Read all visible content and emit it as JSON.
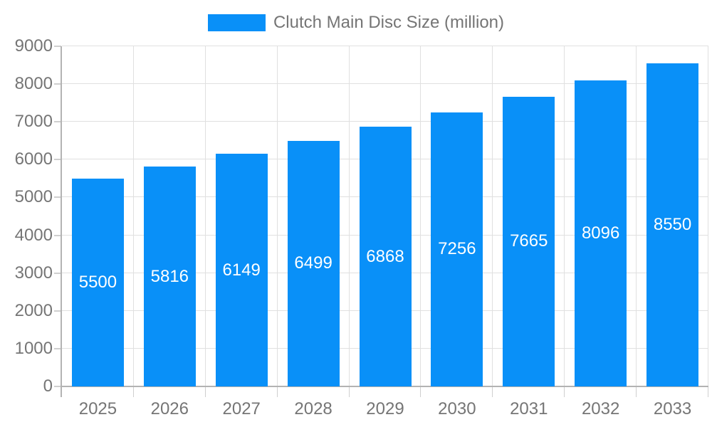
{
  "legend": {
    "label": "Clutch Main Disc Size (million)"
  },
  "colors": {
    "bar": "#0990f8",
    "grid": "#e0e0e0",
    "axis": "#b3b3b3",
    "tick": "#cfcfcf",
    "text": "#757575",
    "value_label": "#ffffff",
    "background": "#ffffff"
  },
  "chart_data": {
    "type": "bar",
    "title": "Clutch Main Disc Size (million)",
    "categories": [
      "2025",
      "2026",
      "2027",
      "2028",
      "2029",
      "2030",
      "2031",
      "2032",
      "2033"
    ],
    "values": [
      5500,
      5816,
      6149,
      6499,
      6868,
      7256,
      7665,
      8096,
      8550
    ],
    "xlabel": "",
    "ylabel": "",
    "ylim": [
      0,
      9000
    ],
    "ytick_step": 1000,
    "ytick_labels": [
      "0",
      "1000",
      "2000",
      "3000",
      "4000",
      "5000",
      "6000",
      "7000",
      "8000",
      "9000"
    ],
    "grid": true,
    "legend_position": "top",
    "value_labels": "inside-center"
  }
}
